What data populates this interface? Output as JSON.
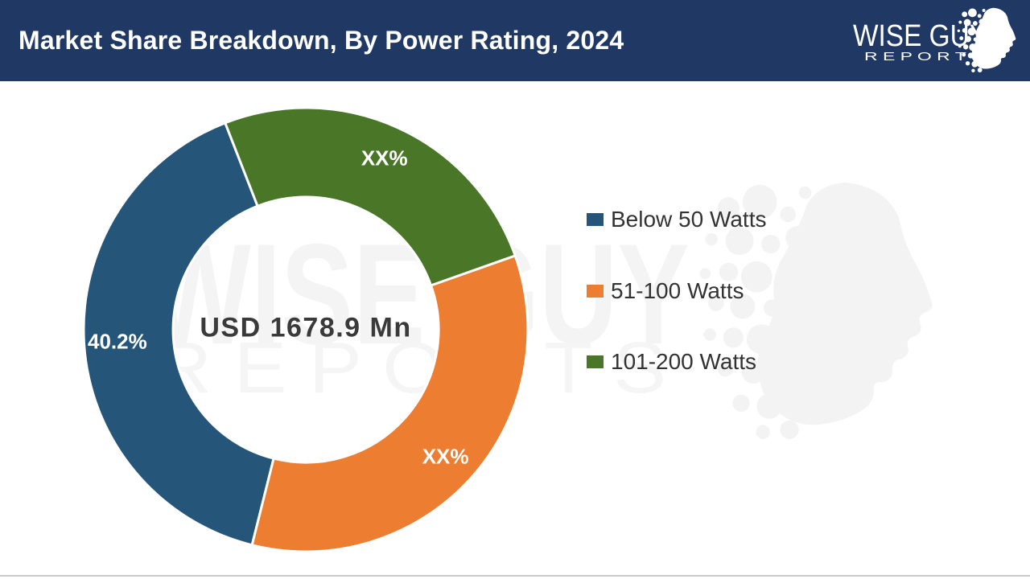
{
  "header": {
    "title": "Market Share Breakdown, By Power Rating, 2024",
    "bg_color": "#203864",
    "logo": {
      "line1": "WISE GUY",
      "line2": "R E P O R T S"
    }
  },
  "chart_data": {
    "type": "pie",
    "subtype": "donut",
    "title": "Market Share Breakdown, By Power Rating, 2024",
    "center_label": "USD 1678.9 Mn",
    "start_angle_deg_clockwise_from_top": 194,
    "direction": "clockwise",
    "legend_position": "right",
    "slices": [
      {
        "name": "Below 50 Watts",
        "value_pct": 40.2,
        "displayed_label": "40.2%",
        "color": "#255679",
        "estimated": false
      },
      {
        "name": "101-200 Watts",
        "value_pct": 25.5,
        "displayed_label": "XX%",
        "color": "#4a7628",
        "estimated": true
      },
      {
        "name": "51-100 Watts",
        "value_pct": 34.3,
        "displayed_label": "XX%",
        "color": "#ec7d31",
        "estimated": true
      }
    ],
    "legend": [
      "Below 50 Watts",
      "51-100 Watts",
      "101-200 Watts"
    ]
  },
  "watermark": {
    "line1": "WISE GUY",
    "line2": "R E P O R T S"
  },
  "colors": {
    "header_bg": "#203864",
    "title_text": "#ffffff",
    "center_text": "#3a3a3a",
    "legend_text": "#333333",
    "slice_label_text": "#ffffff",
    "watermark_gray": "#f3f3f3",
    "footer_line": "#c9c9c9"
  }
}
